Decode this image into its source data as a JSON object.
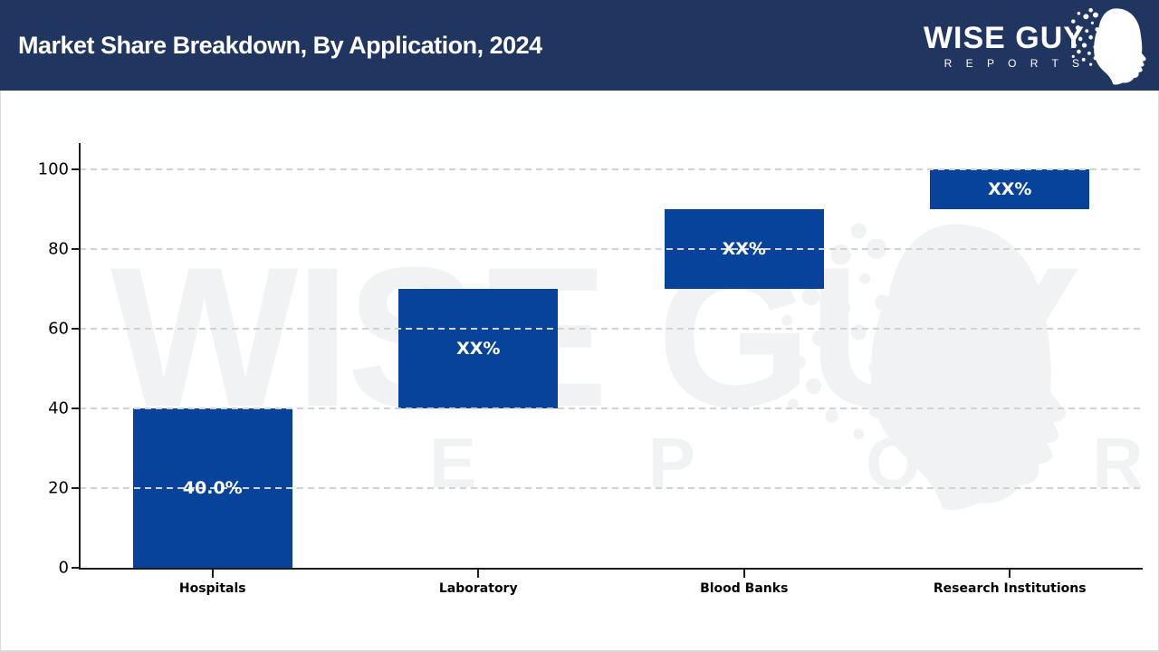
{
  "page": {
    "background": "#ffffff",
    "edge_color": "#d9d9d9"
  },
  "header": {
    "background": "#203560",
    "title": "Market Share Breakdown, By Application, 2024",
    "logo": {
      "wordmark": "WISE GUY",
      "subtext": "R E P O R T S"
    }
  },
  "watermark": {
    "line1": "WISE GUY",
    "line2": "R E P O R T S",
    "color": "#f1f2f4"
  },
  "chart_data": {
    "type": "bar",
    "subtype": "waterfall",
    "title": "Market Share Breakdown, By Application, 2024",
    "xlabel": "",
    "ylabel": "",
    "categories": [
      "Hospitals",
      "Laboratory",
      "Blood Banks",
      "Research Institutions"
    ],
    "segments": [
      {
        "category": "Hospitals",
        "start": 0,
        "end": 40,
        "label": "40.0%"
      },
      {
        "category": "Laboratory",
        "start": 40,
        "end": 70,
        "label": "XX%"
      },
      {
        "category": "Blood Banks",
        "start": 70,
        "end": 90,
        "label": "XX%"
      },
      {
        "category": "Research Institutions",
        "start": 90,
        "end": 100,
        "label": "XX%"
      }
    ],
    "increments": [
      40,
      30,
      20,
      10
    ],
    "unit": "%",
    "y_ticks": [
      0,
      20,
      40,
      60,
      80,
      100
    ],
    "ylim": [
      0,
      106
    ],
    "grid": "horizontal-dashed",
    "legend": null,
    "bar_color": "#08439b",
    "bar_label_color": "#ffffff",
    "axis_color": "#1c1c1c",
    "grid_color": "#d2d2d2",
    "tick_label_color": "#000000"
  }
}
